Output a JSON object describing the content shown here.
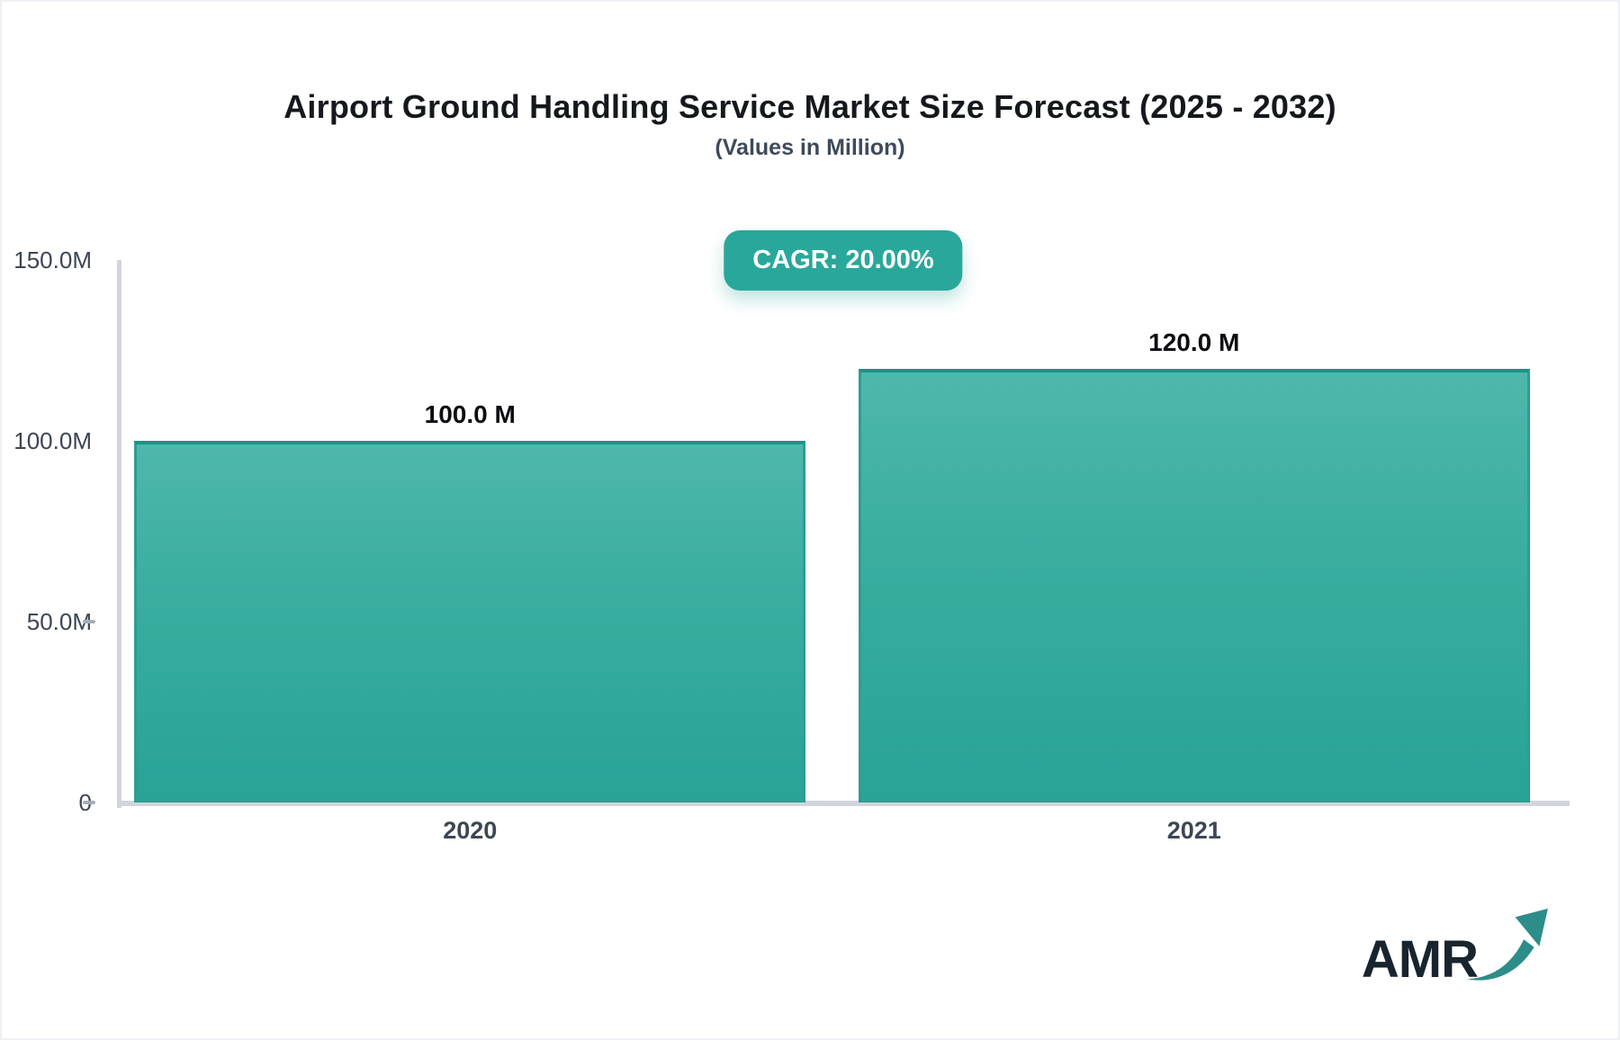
{
  "header": {
    "title": "Airport Ground Handling Service Market Size Forecast (2025 - 2032)",
    "subtitle": "(Values in Million)"
  },
  "badge": {
    "label": "CAGR: 20.00%"
  },
  "logo": {
    "text": "AMR"
  },
  "colors": {
    "accent_teal": "#2aa79b",
    "bar_gradient_top": "#4fb7ac",
    "bar_gradient_bottom": "#28a396",
    "bar_border": "#1f9286",
    "axis_line": "#d2d5db",
    "tick_text": "#3d4653",
    "title_text": "#15181d",
    "logo_text": "#18242e",
    "logo_arrow": "#2d8e89"
  },
  "chart_data": {
    "type": "bar",
    "categories": [
      "2020",
      "2021"
    ],
    "values": [
      100.0,
      120.0
    ],
    "value_labels": [
      "100.0 M",
      "120.0 M"
    ],
    "title": "Airport Ground Handling Service Market Size Forecast (2025 - 2032)",
    "subtitle": "(Values in Million)",
    "xlabel": "",
    "ylabel": "",
    "ylim": [
      0,
      150
    ],
    "yticks": [
      {
        "value": 150,
        "label": "150.0M",
        "tick_mark": false
      },
      {
        "value": 100,
        "label": "100.0M",
        "tick_mark": false
      },
      {
        "value": 50,
        "label": "50.0M",
        "tick_mark": true
      },
      {
        "value": 0,
        "label": "0",
        "tick_mark": true
      }
    ],
    "grid": false,
    "legend_position": "none",
    "annotation": "CAGR: 20.00%"
  }
}
